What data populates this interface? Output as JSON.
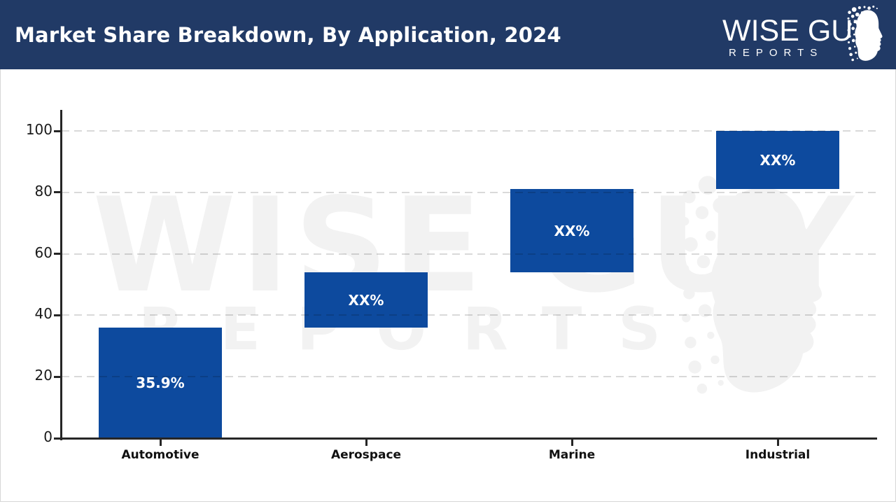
{
  "header": {
    "title": "Market Share Breakdown, By Application, 2024",
    "bg_color": "#213A66",
    "logo": {
      "brand": "WISE GUY",
      "sub": "REPORTS"
    }
  },
  "watermark": {
    "line1": "WISE GUY",
    "line2": "REPORTS"
  },
  "chart_data": {
    "type": "bar",
    "subtype": "waterfall-floating-bars",
    "title": "Market Share Breakdown, By Application, 2024",
    "categories": [
      "Automotive",
      "Aerospace",
      "Marine",
      "Industrial"
    ],
    "segments": [
      {
        "category": "Automotive",
        "start": 0,
        "end": 35.9,
        "label": "35.9%"
      },
      {
        "category": "Aerospace",
        "start": 35.9,
        "end": 54,
        "label": "XX%"
      },
      {
        "category": "Marine",
        "start": 54,
        "end": 81,
        "label": "XX%"
      },
      {
        "category": "Industrial",
        "start": 81,
        "end": 100,
        "label": "XX%"
      }
    ],
    "ylim": [
      0,
      100
    ],
    "yticks": [
      0,
      20,
      40,
      60,
      80,
      100
    ],
    "grid": "dashed-horizontal",
    "legend": "none",
    "bar_color": "#0D4A9E",
    "bar_label_color": "#FFFFFF",
    "axis_color": "#262626"
  }
}
